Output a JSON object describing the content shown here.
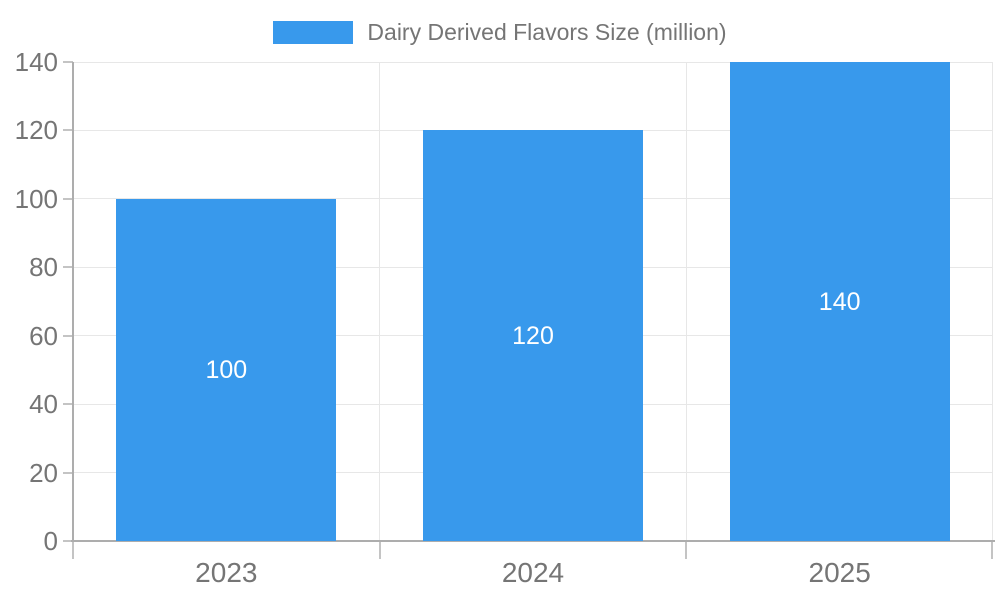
{
  "chart_data": {
    "type": "bar",
    "title": "Dairy Derived Flavors Size (million)",
    "legend_entries": [
      "Dairy Derived Flavors Size (million)"
    ],
    "legend_position": "top-center",
    "categories": [
      "2023",
      "2024",
      "2025"
    ],
    "values": [
      100,
      120,
      140
    ],
    "data_labels": [
      "100",
      "120",
      "140"
    ],
    "xlabel": "",
    "ylabel": "",
    "ylim": [
      0,
      140
    ],
    "ytick_step": 20,
    "yticks": [
      "0",
      "20",
      "40",
      "60",
      "80",
      "100",
      "120",
      "140"
    ],
    "ytick_values": [
      0,
      20,
      40,
      60,
      80,
      100,
      120,
      140
    ],
    "grid": true,
    "colors": {
      "bar": "#3899EC",
      "grid_line": "#E7E7E7",
      "axis_line": "#ADADAD",
      "tick_mark": "#C4C4C4",
      "axis_label": "#757575",
      "legend_text": "#757575",
      "data_label": "#FFFFFF",
      "background": "#FFFFFF"
    }
  }
}
